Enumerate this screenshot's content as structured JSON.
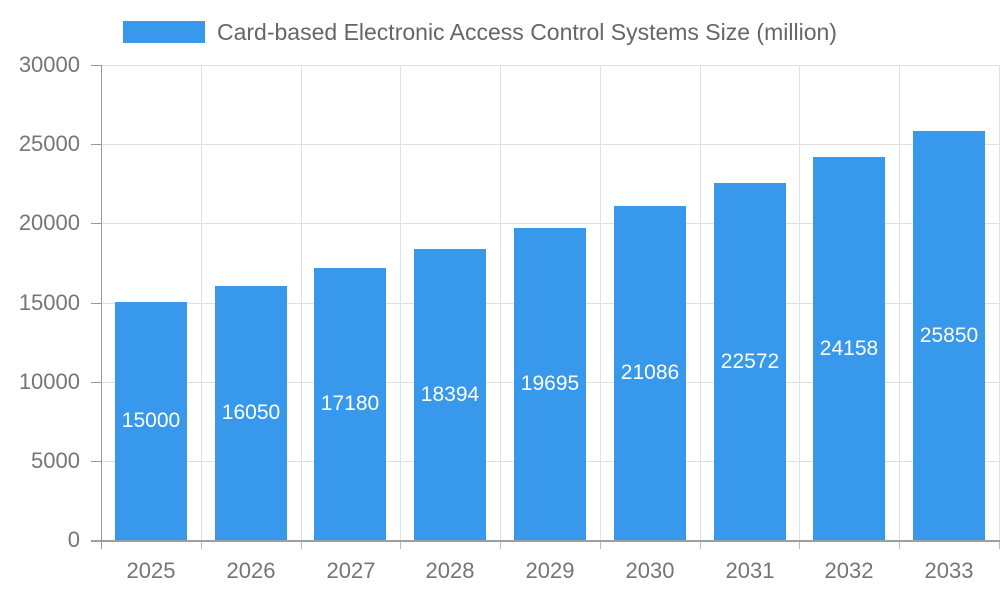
{
  "chart_data": {
    "type": "bar",
    "title": "Card-based Electronic Access Control Systems Size (million)",
    "categories": [
      "2025",
      "2026",
      "2027",
      "2028",
      "2029",
      "2030",
      "2031",
      "2032",
      "2033"
    ],
    "values": [
      15000,
      16050,
      17180,
      18394,
      19695,
      21086,
      22572,
      24158,
      25850
    ],
    "xlabel": "",
    "ylabel": "",
    "ylim": [
      0,
      30000
    ],
    "yticks": [
      0,
      5000,
      10000,
      15000,
      20000,
      25000,
      30000
    ],
    "grid": true,
    "legend": {
      "position": "top",
      "label": "Card-based Electronic Access Control Systems Size (million)"
    },
    "colors": {
      "bar": "#3899EC",
      "value_label": "#FFFFFF",
      "axis_text": "#757575",
      "legend_text": "#666666",
      "axis_line": "#9E9E9E",
      "grid_line": "#E0E0E0",
      "tick_line": "#BBBBBB",
      "background": "#FFFFFF"
    }
  }
}
